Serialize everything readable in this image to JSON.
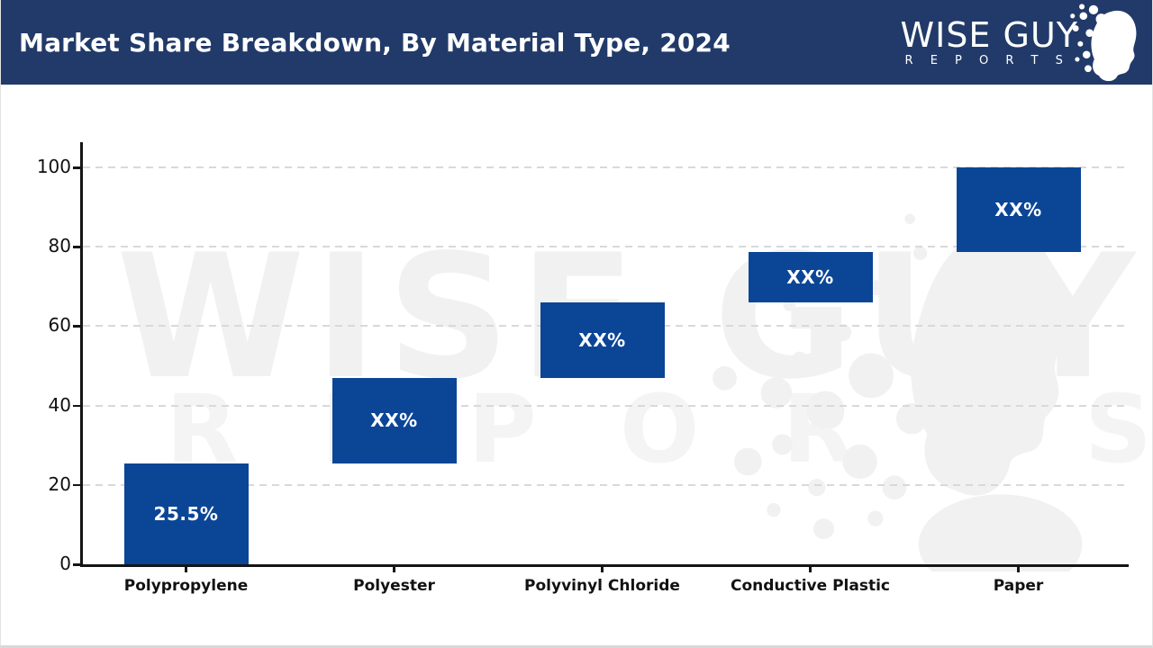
{
  "header": {
    "title": "Market Share Breakdown, By Material Type, 2024",
    "logo": {
      "brand": "WISE GUY",
      "sub": "R E P O R T S"
    }
  },
  "watermark": {
    "brand": "WISE GUY",
    "sub": "R E P O R T S"
  },
  "chart_data": {
    "type": "bar",
    "variant": "waterfall",
    "title": "Market Share Breakdown, By Material Type, 2024",
    "categories": [
      "Polypropylene",
      "Polyester",
      "Polyvinyl Chloride",
      "Conductive Plastic",
      "Paper"
    ],
    "series": [
      {
        "name": "Market Share",
        "segments": [
          {
            "category": "Polypropylene",
            "start": 0,
            "end": 25.5,
            "label": "25.5%"
          },
          {
            "category": "Polyester",
            "start": 25.5,
            "end": 47,
            "label": "XX%"
          },
          {
            "category": "Polyvinyl Chloride",
            "start": 47,
            "end": 66,
            "label": "XX%"
          },
          {
            "category": "Conductive Plastic",
            "start": 66,
            "end": 78.7,
            "label": "XX%"
          },
          {
            "category": "Paper",
            "start": 78.7,
            "end": 100,
            "label": "XX%"
          }
        ]
      }
    ],
    "xlabel": "",
    "ylabel": "",
    "yticks": [
      0,
      20,
      40,
      60,
      80,
      100
    ],
    "ylim": [
      0,
      106
    ],
    "grid": "horizontal-dashed",
    "legend": "none",
    "bar_color": "#0b4596",
    "value_label_color": "#ffffff"
  },
  "colors": {
    "header_bg": "#213a69",
    "bar": "#0b4596",
    "axis": "#151515",
    "grid": "#d9d9d9",
    "watermark": "#f1f1f1",
    "page_border": "#d8d8d8"
  }
}
